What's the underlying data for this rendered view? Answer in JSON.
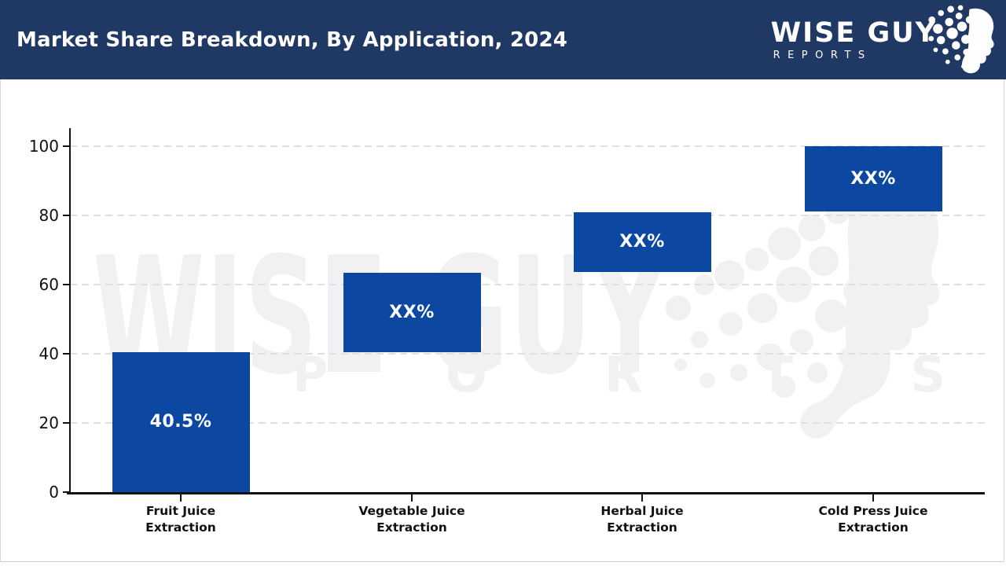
{
  "header": {
    "title": "Market Share Breakdown, By Application, 2024",
    "logo": {
      "name": "WISE GUY",
      "sub": "REPORTS"
    },
    "colors": {
      "header_bg": "#1f3864",
      "logo_text": "#ffffff"
    }
  },
  "watermark": {
    "line1": "WISE GUY",
    "line2": "E P O R T S"
  },
  "chart_data": {
    "type": "bar",
    "subtype": "floating-segment-bars (waterfall-style market share breakdown)",
    "title": "Market Share Breakdown, By Application, 2024",
    "categories": [
      "Fruit Juice Extraction",
      "Vegetable Juice Extraction",
      "Herbal Juice Extraction",
      "Cold Press Juice Extraction"
    ],
    "category_label_lines": [
      [
        "Fruit Juice",
        "Extraction"
      ],
      [
        "Vegetable Juice",
        "Extraction"
      ],
      [
        "Herbal Juice",
        "Extraction"
      ],
      [
        "Cold Press Juice",
        "Extraction"
      ]
    ],
    "series": [
      {
        "category": "Fruit Juice Extraction",
        "start": 0,
        "end": 40.5,
        "label": "40.5%"
      },
      {
        "category": "Vegetable Juice Extraction",
        "start": 40.5,
        "end": 63.3,
        "label": "XX%"
      },
      {
        "category": "Herbal Juice Extraction",
        "start": 63.6,
        "end": 81.0,
        "label": "XX%"
      },
      {
        "category": "Cold Press Juice Extraction",
        "start": 81.2,
        "end": 100,
        "label": "XX%"
      }
    ],
    "yticks": [
      "0",
      "20",
      "40",
      "60",
      "80",
      "100"
    ],
    "ytick_values": [
      0,
      20,
      40,
      60,
      80,
      100
    ],
    "ylim": [
      0,
      105
    ],
    "xlabel": "",
    "ylabel": "",
    "grid": "horizontal dashed at each y tick",
    "legend": "none",
    "bar_color": "#0c47a1",
    "bar_label_color": "#ffffff",
    "axis_color": "#111111",
    "grid_color": "#e0e0e0"
  }
}
